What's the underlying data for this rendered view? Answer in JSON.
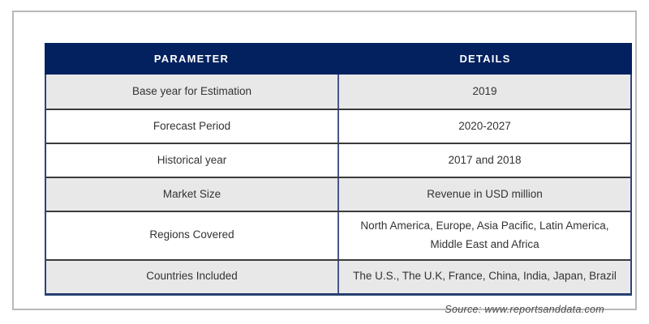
{
  "chart_data": {
    "type": "table",
    "columns": [
      "PARAMETER",
      "DETAILS"
    ],
    "rows": [
      [
        "Base year for Estimation",
        "2019"
      ],
      [
        "Forecast Period",
        "2020-2027"
      ],
      [
        "Historical year",
        "2017 and 2018"
      ],
      [
        "Market Size",
        "Revenue in USD million"
      ],
      [
        "Regions Covered",
        "North America, Europe, Asia Pacific, Latin America, Middle East and Africa"
      ],
      [
        "Countries Included",
        "The U.S., The  U.K, France, China, India, Japan, Brazil"
      ]
    ],
    "title": "",
    "source": "Source: www.reportsanddata.com",
    "layout_hints": {
      "header_position": "top",
      "shaded_row_indexes": [
        0,
        3,
        5
      ],
      "column_split": "50/50"
    }
  },
  "colors": {
    "header_bg": "#03215f",
    "header_text": "#ffffff",
    "row_shade": "#e8e8e9",
    "row_white": "#ffffff",
    "horizontal_border": "#3b3b3b",
    "vertical_border": "#46588a",
    "outer_table_border": "#2c4577",
    "card_border": "#b9b9b9",
    "body_text": "#333333",
    "source_text": "#4a4a4a"
  }
}
